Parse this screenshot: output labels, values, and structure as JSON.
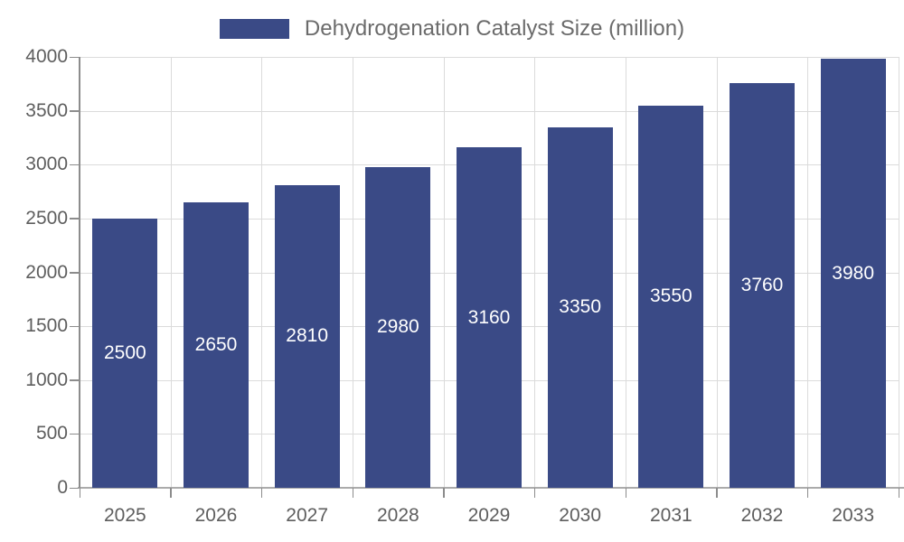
{
  "legend": {
    "label": "Dehydrogenation Catalyst Size (million)"
  },
  "colors": {
    "bar": "#3A4A86",
    "grid": "#DBDBDB",
    "axis": "#8C8C8C",
    "bottom_axis": "#ABABAB",
    "tick_label": "#5E5E5E",
    "title": "#6B6B6B",
    "value_label": "#FFFFFF",
    "background": "#FFFFFF"
  },
  "chart_data": {
    "type": "bar",
    "title": "Dehydrogenation Catalyst Size (million)",
    "categories": [
      "2025",
      "2026",
      "2027",
      "2028",
      "2029",
      "2030",
      "2031",
      "2032",
      "2033"
    ],
    "values": [
      2500,
      2650,
      2810,
      2980,
      3160,
      3350,
      3550,
      3760,
      3980
    ],
    "xlabel": "",
    "ylabel": "",
    "ylim": [
      0,
      4000
    ],
    "ytick_step": 500,
    "ytick_labels": [
      "0",
      "500",
      "1000",
      "1500",
      "2000",
      "2500",
      "3000",
      "3500",
      "4000"
    ],
    "grid": true,
    "legend_position": "top-center",
    "value_labels": "inside-center"
  }
}
